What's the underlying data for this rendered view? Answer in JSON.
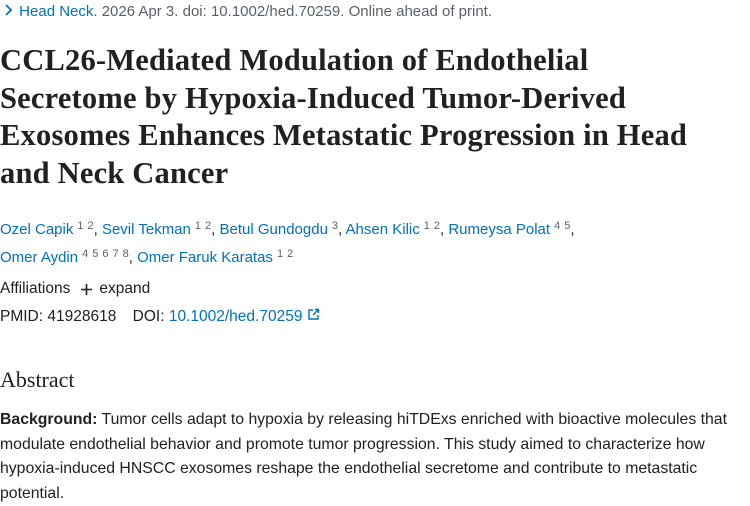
{
  "citation": {
    "journal": "Head Neck.",
    "details": " 2026 Apr 3. doi: 10.1002/hed.70259. Online ahead of print."
  },
  "title": "CCL26-Mediated Modulation of Endothelial Secretome by Hypoxia-Induced Tumor-Derived Exosomes Enhances Metastatic Progression in Head and Neck Cancer",
  "authors": {
    "separator": ",",
    "list": [
      {
        "name": "Ozel Capik",
        "affiliations": [
          1,
          2
        ]
      },
      {
        "name": "Sevil Tekman",
        "affiliations": [
          1,
          2
        ]
      },
      {
        "name": "Betul Gundogdu",
        "affiliations": [
          3
        ]
      },
      {
        "name": "Ahsen Kilic",
        "affiliations": [
          1,
          2
        ]
      },
      {
        "name": "Rumeysa Polat",
        "affiliations": [
          4,
          5
        ]
      },
      {
        "name": "Omer Aydin",
        "affiliations": [
          4,
          5,
          6,
          7,
          8
        ]
      },
      {
        "name": "Omer Faruk Karatas",
        "affiliations": [
          1,
          2
        ]
      }
    ]
  },
  "affiliations": {
    "label": "Affiliations",
    "toggle": "expand"
  },
  "identifiers": {
    "pmid_label": "PMID:",
    "pmid": "41928618",
    "doi_label": "DOI:",
    "doi": "10.1002/hed.70259"
  },
  "abstract": {
    "heading": "Abstract",
    "background_label": "Background:",
    "background_text": " Tumor cells adapt to hypoxia by releasing hiTDExs enriched with bioactive molecules that modulate endothelial behavior and promote tumor progression. This study aimed to characterize how hypoxia-induced HNSCC exosomes reshape the endothelial secretome and contribute to metastatic potential."
  }
}
